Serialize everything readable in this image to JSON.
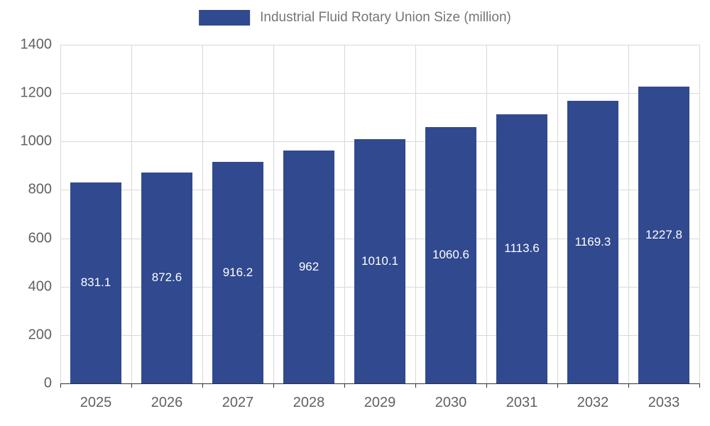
{
  "legend": {
    "label": "Industrial Fluid Rotary Union Size (million)"
  },
  "colors": {
    "bar": "#30498F",
    "grid": "#d9d9d9",
    "axis_line": "#333333",
    "axis_text": "#616161",
    "legend_text": "#757575",
    "value_label": "#ffffff"
  },
  "chart_data": {
    "type": "bar",
    "title": "Industrial Fluid Rotary Union Size (million)",
    "categories": [
      "2025",
      "2026",
      "2027",
      "2028",
      "2029",
      "2030",
      "2031",
      "2032",
      "2033"
    ],
    "values": [
      831.1,
      872.6,
      916.2,
      962,
      1010.1,
      1060.6,
      1113.6,
      1169.3,
      1227.8
    ],
    "value_labels": [
      "831.1",
      "872.6",
      "916.2",
      "962",
      "1010.1",
      "1060.6",
      "1113.6",
      "1169.3",
      "1227.8"
    ],
    "xlabel": "",
    "ylabel": "",
    "ylim": [
      0,
      1400
    ],
    "yticks": [
      0,
      200,
      400,
      600,
      800,
      1000,
      1200,
      1400
    ],
    "ytick_labels": [
      "0",
      "200",
      "400",
      "600",
      "800",
      "1000",
      "1200",
      "1400"
    ],
    "grid": true,
    "legend_position": "top",
    "value_label_position": "center-inside"
  }
}
